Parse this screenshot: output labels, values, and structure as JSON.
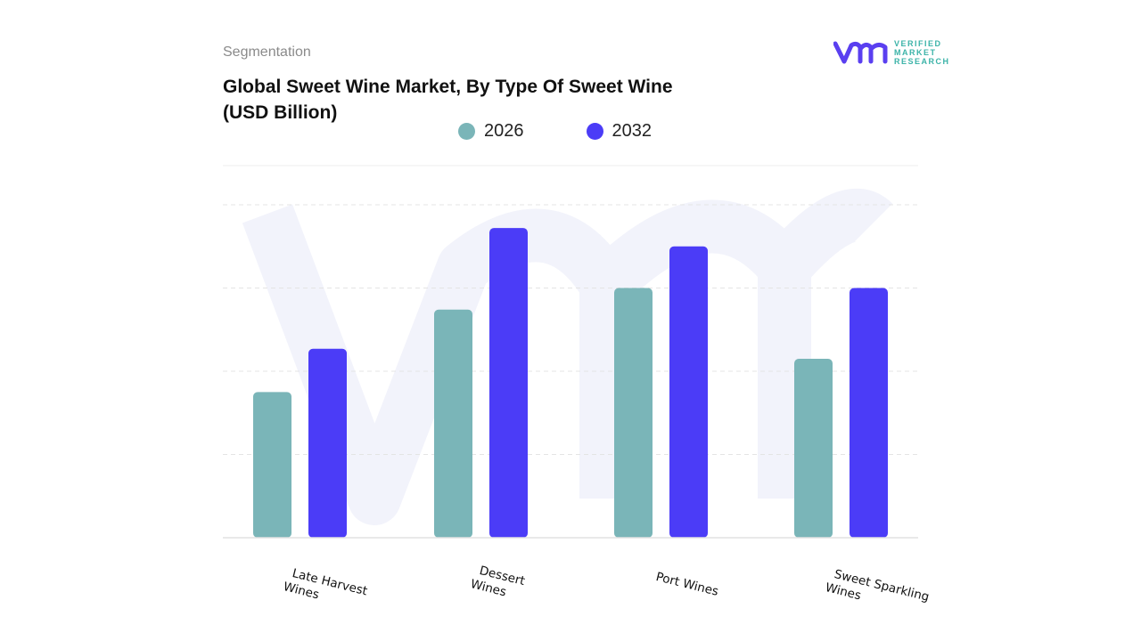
{
  "header": {
    "segment": "Segmentation",
    "title": "Global Sweet Wine Market, By Type Of Sweet Wine (USD Billion)"
  },
  "logo": {
    "text": "VERIFIED MARKET RESEARCH",
    "color": "#5a3ff0"
  },
  "chart_data": {
    "type": "bar",
    "title": "Global Sweet Wine Market, By Type Of Sweet Wine (USD Billion)",
    "categories": [
      "Late Harvest Wines",
      "Dessert Wines",
      "Port Wines",
      "Sweet Sparkling Wines"
    ],
    "series": [
      {
        "name": "2026",
        "color": "#7ab5b8",
        "values": [
          1.75,
          2.74,
          3.0,
          2.15
        ]
      },
      {
        "name": "2032",
        "color": "#4b3cf7",
        "values": [
          2.27,
          3.72,
          3.5,
          3.0
        ]
      }
    ],
    "ylim": [
      0,
      4.5
    ],
    "y_axis_labels": "none",
    "grid": true,
    "legend": "top-center"
  }
}
